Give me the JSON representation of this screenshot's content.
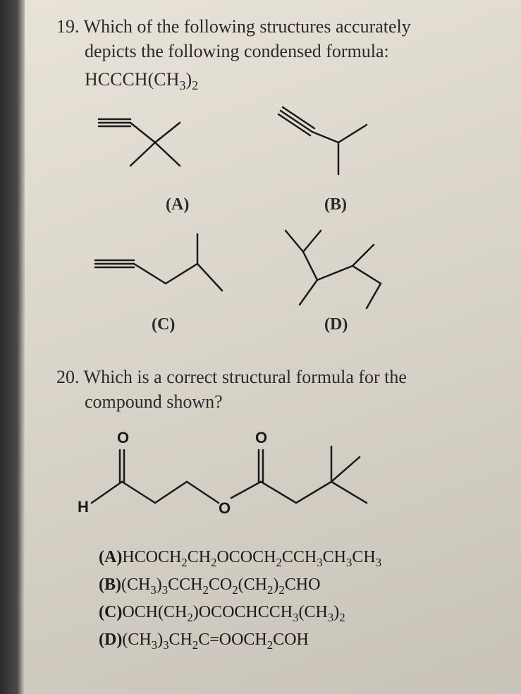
{
  "q19": {
    "number": "19.",
    "text_line1": "Which of the following structures accurately",
    "text_line2": "depicts the following condensed formula:",
    "formula_html": "HCCCH(CH<sub>3</sub>)<sub>2</sub>",
    "labels": {
      "a": "(A)",
      "b": "(B)",
      "c": "(C)",
      "d": "(D)"
    },
    "stroke_color": "#1a1a1a",
    "stroke_width": 2.5
  },
  "q20": {
    "number": "20.",
    "text_line1": "Which is a correct structural formula for the",
    "text_line2": "compound shown?",
    "atom_O1": "O",
    "atom_O2": "O",
    "atom_H": "H",
    "stroke_color": "#1a1a1a",
    "stroke_width": 2.5,
    "answers": {
      "a": {
        "label": "(A)",
        "formula_html": "HCOCH<sub>2</sub>CH<sub>2</sub>OCOCH<sub>2</sub>CCH<sub>3</sub>CH<sub>3</sub>CH<sub>3</sub>"
      },
      "b": {
        "label": "(B)",
        "formula_html": "(CH<sub>3</sub>)<sub>3</sub>CCH<sub>2</sub>CO<sub>2</sub>(CH<sub>2</sub>)<sub>2</sub>CHO"
      },
      "c": {
        "label": "(C)",
        "formula_html": "OCH(CH<sub>2</sub>)OCOCHCCH<sub>3</sub>(CH<sub>3</sub>)<sub>2</sub>"
      },
      "d": {
        "label": "(D)",
        "formula_html": "(CH<sub>3</sub>)<sub>3</sub>CH<sub>2</sub>C=OOCH<sub>2</sub>COH"
      }
    }
  }
}
